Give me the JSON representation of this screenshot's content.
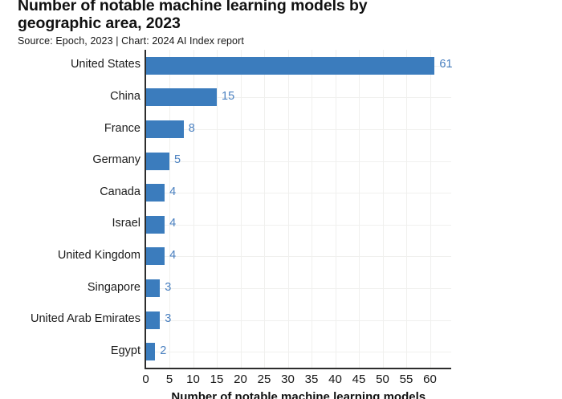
{
  "header": {
    "title_line1": "Number of notable machine learning models by",
    "title_line2": "geographic area, 2023",
    "source": "Source: Epoch, 2023 | Chart: 2024 AI Index report"
  },
  "chart_data": {
    "type": "bar",
    "orientation": "horizontal",
    "title": "Number of notable machine learning models by geographic area, 2023",
    "categories": [
      "United States",
      "China",
      "France",
      "Germany",
      "Canada",
      "Israel",
      "United Kingdom",
      "Singapore",
      "United Arab Emirates",
      "Egypt"
    ],
    "values": [
      61,
      15,
      8,
      5,
      4,
      4,
      4,
      3,
      3,
      2
    ],
    "value_labels": [
      "61",
      "15",
      "8",
      "5",
      "4",
      "4",
      "4",
      "3",
      "3",
      "2"
    ],
    "xlabel": "Number of notable machine learning models",
    "xticks": [
      0,
      5,
      10,
      15,
      20,
      25,
      30,
      35,
      40,
      45,
      50,
      55,
      60
    ],
    "xlim": [
      0,
      64
    ],
    "grid": true,
    "legend": "none",
    "bar_color": "#3b7cbd",
    "value_label_color": "#4a80c0",
    "axis_color": "#2d2d2d",
    "grid_color": "#f0f0ee"
  }
}
